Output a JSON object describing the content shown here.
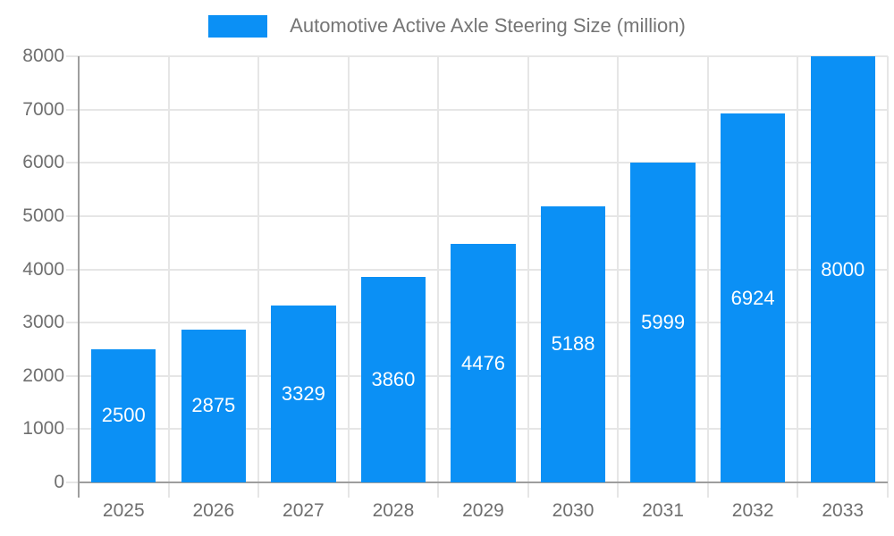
{
  "chart_data": {
    "type": "bar",
    "title": "Automotive Active Axle Steering Size (million)",
    "legend_entries": [
      "Automotive Active Axle Steering Size (million)"
    ],
    "categories": [
      "2025",
      "2026",
      "2027",
      "2028",
      "2029",
      "2030",
      "2031",
      "2032",
      "2033"
    ],
    "values": [
      2500,
      2875,
      3329,
      3860,
      4476,
      5188,
      5999,
      6924,
      8000
    ],
    "xlabel": "",
    "ylabel": "",
    "ylim": [
      0,
      8000
    ],
    "ytick_step": 1000,
    "ytick_labels": [
      "0",
      "1000",
      "2000",
      "3000",
      "4000",
      "5000",
      "6000",
      "7000",
      "8000"
    ],
    "grid": true,
    "legend_position": "top-center",
    "value_labels_position": "inside-center",
    "bar_color": "#0b90f5",
    "colors": {
      "gridline": "#e6e6e6",
      "axis_line": "#9e9e9e",
      "axis_label": "#6f6f6f",
      "title": "#757575",
      "value_label": "#ffffff",
      "background": "#ffffff"
    }
  }
}
